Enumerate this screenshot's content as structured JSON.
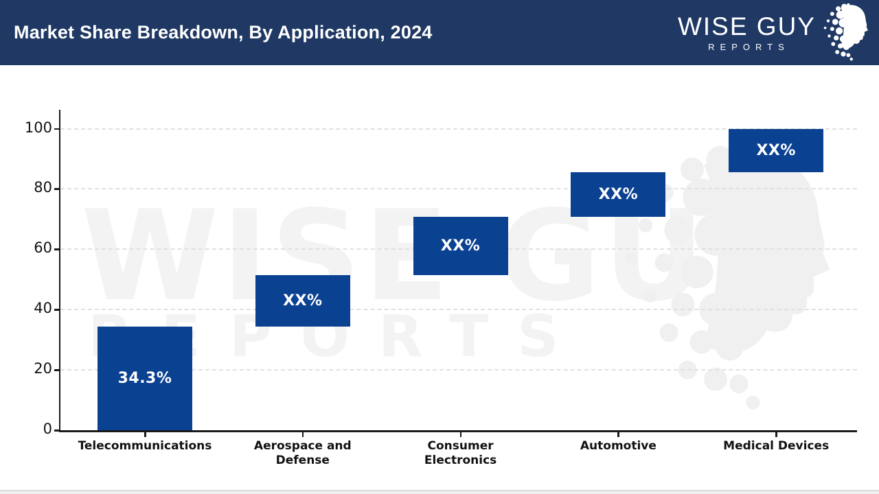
{
  "header": {
    "title": "Market Share Breakdown, By Application, 2024",
    "logo": {
      "name": "WISE GUY",
      "sub": "REPORTS"
    }
  },
  "watermark": {
    "name": "WISE GUY",
    "sub": "REPORTS"
  },
  "chart_data": {
    "type": "bar",
    "variant": "waterfall",
    "title": "Market Share Breakdown, By Application, 2024",
    "unit": "%",
    "categories": [
      "Telecommunications",
      "Aerospace and\nDefense",
      "Consumer\nElectronics",
      "Automotive",
      "Medical Devices"
    ],
    "segments": [
      {
        "category": "Telecommunications",
        "start": 0,
        "end": 34.3,
        "label": "34.3%"
      },
      {
        "category": "Aerospace and Defense",
        "start": 34.3,
        "end": 51.4,
        "label": "XX%"
      },
      {
        "category": "Consumer Electronics",
        "start": 51.4,
        "end": 70.8,
        "label": "XX%"
      },
      {
        "category": "Automotive",
        "start": 70.8,
        "end": 85.5,
        "label": "XX%"
      },
      {
        "category": "Medical Devices",
        "start": 85.5,
        "end": 100,
        "label": "XX%"
      }
    ],
    "ylim": [
      0,
      100
    ],
    "yticks": [
      0,
      20,
      40,
      60,
      80,
      100
    ],
    "grid": "horizontal-dashed",
    "legend": "none",
    "colors": {
      "bar": "#0a4191",
      "bar_label": "#ffffff",
      "grid": "#e0e0e0",
      "axis": "#1a1a1a",
      "header_bg": "#1f3864",
      "watermark": "#f2f2f2"
    }
  }
}
